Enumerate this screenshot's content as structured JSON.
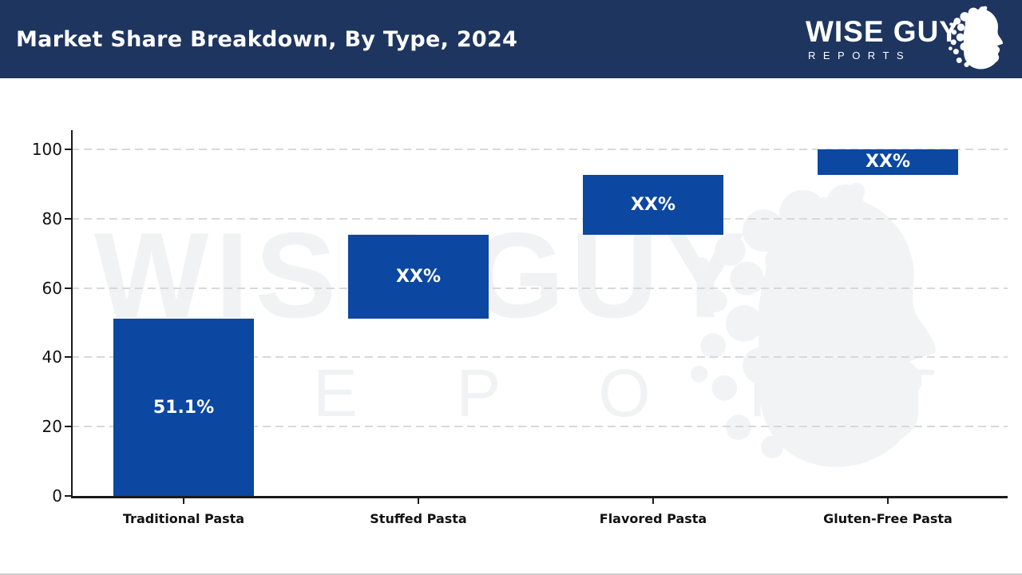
{
  "header": {
    "title": "Market Share Breakdown, By Type, 2024",
    "logo": {
      "primary": "WISE GUY",
      "secondary": "REPORTS"
    }
  },
  "watermark": {
    "primary": "WISE GUY",
    "secondary": "R E P O R T S"
  },
  "chart_data": {
    "type": "bar",
    "variant": "waterfall",
    "title": "Market Share Breakdown, By Type, 2024",
    "categories": [
      "Traditional Pasta",
      "Stuffed Pasta",
      "Flavored Pasta",
      "Gluten-Free Pasta"
    ],
    "bars": [
      {
        "category": "Traditional Pasta",
        "start": 0,
        "end": 51.1,
        "label": "51.1%"
      },
      {
        "category": "Stuffed Pasta",
        "start": 51.1,
        "end": 75.3,
        "label": "XX%"
      },
      {
        "category": "Flavored Pasta",
        "start": 75.3,
        "end": 92.7,
        "label": "XX%"
      },
      {
        "category": "Gluten-Free Pasta",
        "start": 92.7,
        "end": 100,
        "label": "XX%"
      }
    ],
    "xlabel": "",
    "ylabel": "",
    "ylim": [
      0,
      100
    ],
    "yticks": [
      0,
      20,
      40,
      60,
      80,
      100
    ],
    "grid": "horizontal-dashed",
    "legend": "none",
    "colors": {
      "bar": "#0c47a1",
      "bar_label": "#ffffff",
      "grid": "#d9d9d9",
      "axis": "#1a1a1a",
      "header_bg": "#1e3560",
      "header_text": "#ffffff",
      "watermark": "#f1f2f4"
    }
  }
}
